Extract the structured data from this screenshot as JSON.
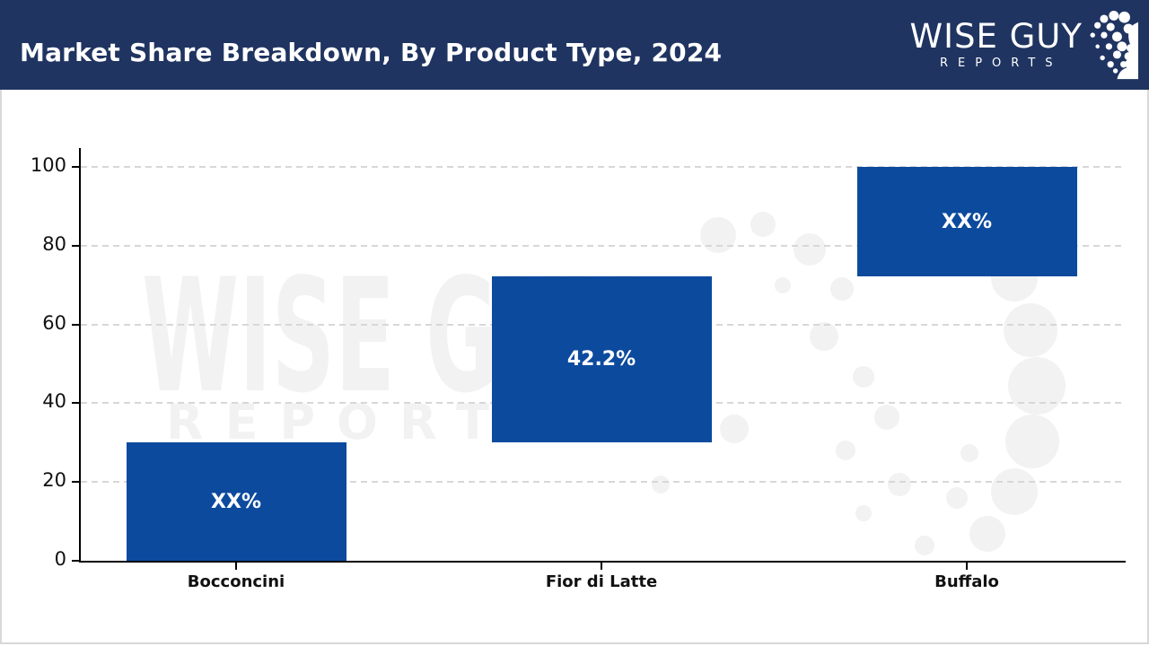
{
  "header": {
    "title": "Market Share Breakdown, By Product Type, 2024",
    "logo": {
      "wordmark": "WISE GUY",
      "subtext": "REPORTS"
    }
  },
  "watermark": {
    "wordmark": "WISE GUY",
    "subtext": "REPORTS"
  },
  "chart_data": {
    "type": "bar",
    "variant": "floating-waterfall",
    "title": "Market Share Breakdown, By Product Type, 2024",
    "categories": [
      "Bocconcini",
      "Fior di Latte",
      "Buffalo"
    ],
    "bars": [
      {
        "category": "Bocconcini",
        "start": 0,
        "end": 30,
        "label": "XX%"
      },
      {
        "category": "Fior di Latte",
        "start": 30,
        "end": 72.2,
        "label": "42.2%"
      },
      {
        "category": "Buffalo",
        "start": 72.2,
        "end": 100,
        "label": "XX%"
      }
    ],
    "yticks": [
      0,
      20,
      40,
      60,
      80,
      100
    ],
    "ylim": [
      0,
      105
    ],
    "xlabel": "",
    "ylabel": "",
    "grid": "horizontal-dashed",
    "legend": "none"
  },
  "colors": {
    "header_bg": "#1f3461",
    "bar": "#0c4a9e",
    "bar_label": "#ffffff",
    "grid": "#d7d7d7",
    "axis": "#000000",
    "watermark": "#f2f2f2",
    "page_bg": "#ffffff",
    "edge_line": "#d8d8d8"
  }
}
